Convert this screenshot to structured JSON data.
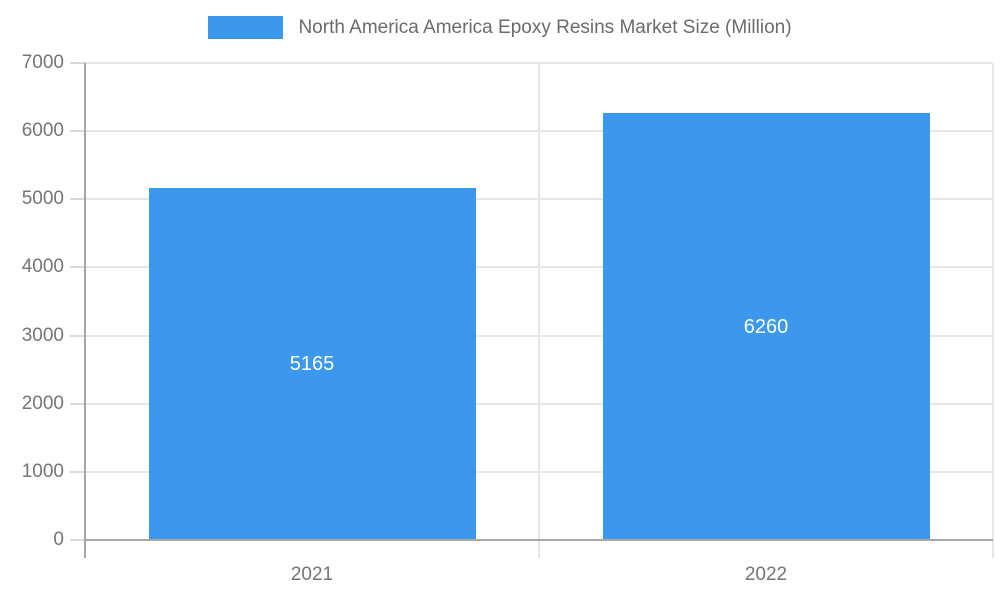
{
  "legend": {
    "label": "North America America Epoxy Resins Market Size (Million)"
  },
  "chart_data": {
    "type": "bar",
    "title": "North America America Epoxy Resins Market Size (Million)",
    "categories": [
      "2021",
      "2022"
    ],
    "values": [
      5165,
      6260
    ],
    "value_labels": [
      "5165",
      "6260"
    ],
    "xlabel": "",
    "ylabel": "",
    "ylim": [
      0,
      7000
    ],
    "yticks": [
      0,
      1000,
      2000,
      3000,
      4000,
      5000,
      6000,
      7000
    ],
    "grid": true,
    "legend_position": "top-center",
    "colors": {
      "bar": "#3B98EC",
      "grid": "#E6E6E6",
      "axis_line": "#A6A6A6",
      "tick": "#D9D9D9",
      "axis_text": "#757575",
      "legend_text": "#6B6B6B",
      "value_text": "#FFFFFF",
      "background": "#FFFFFF"
    }
  }
}
